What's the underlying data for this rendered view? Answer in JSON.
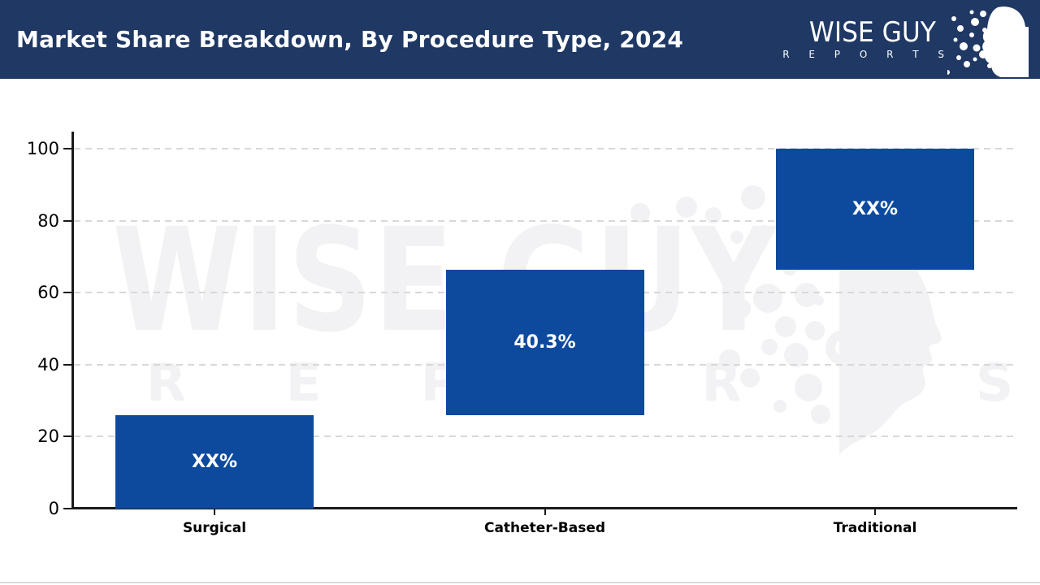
{
  "header": {
    "title": "Market Share Breakdown, By Procedure Type, 2024",
    "logo_line1": "WISE GUY",
    "logo_line2": "R E P O R T S"
  },
  "watermark": {
    "line1": "WISE GUY",
    "line2": "R E P O R T S"
  },
  "colors": {
    "header_bg": "#1f3864",
    "bar": "#0d4a9e",
    "bar_label": "#ffffff",
    "grid": "#d8d8d8",
    "axis": "#1a1a1a",
    "watermark": "#f2f2f4",
    "footer_line": "#dcdcdc"
  },
  "chart_data": {
    "type": "bar",
    "subtype": "floating-waterfall",
    "title": "Market Share Breakdown, By Procedure Type, 2024",
    "categories": [
      "Surgical",
      "Catheter-Based",
      "Traditional"
    ],
    "segments": [
      {
        "category": "Surgical",
        "start": 0,
        "end": 26,
        "label": "XX%"
      },
      {
        "category": "Catheter-Based",
        "start": 26,
        "end": 66.3,
        "label": "40.3%"
      },
      {
        "category": "Traditional",
        "start": 66.3,
        "end": 100,
        "label": "XX%"
      }
    ],
    "units": "%",
    "yticks": [
      0,
      20,
      40,
      60,
      80,
      100
    ],
    "ylim": [
      0,
      105
    ],
    "xlabel": "",
    "ylabel": "",
    "grid": "horizontal-dashed",
    "legend": "none",
    "bar_color": "#0d4a9e",
    "value_label_color": "#ffffff"
  }
}
